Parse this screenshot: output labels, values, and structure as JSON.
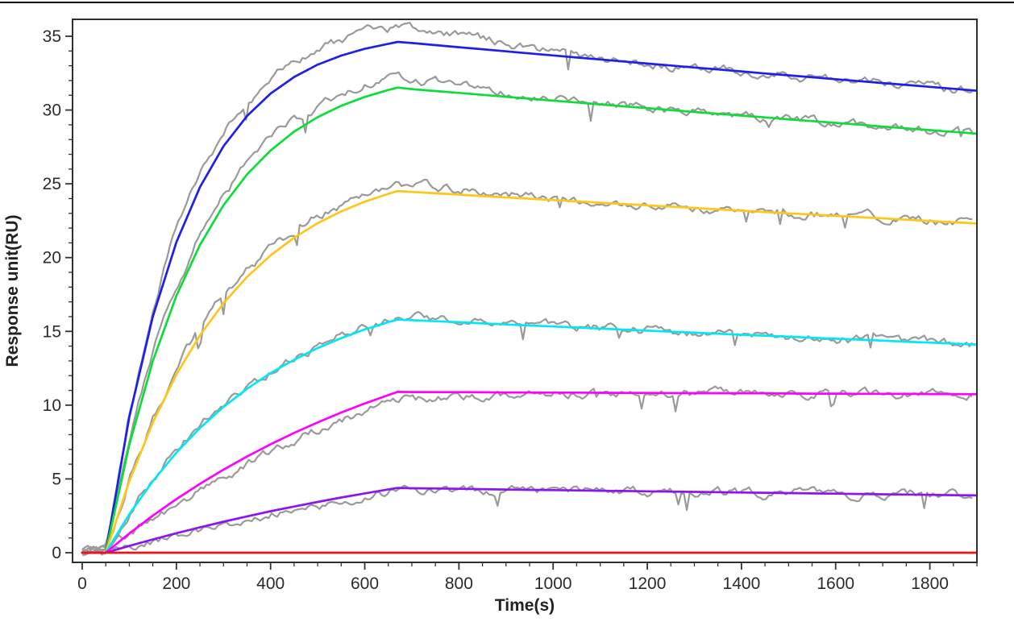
{
  "figure": {
    "background": "#ffffff",
    "top_divider_color": "#000000"
  },
  "chart_data": {
    "type": "line",
    "title": "",
    "xlabel": "Time(s)",
    "ylabel": "Response unit(RU)",
    "xlim": [
      -25,
      1900
    ],
    "ylim": [
      -0.7,
      36.2
    ],
    "grid": false,
    "legend": "none",
    "x_major_ticks": [
      0,
      200,
      400,
      600,
      800,
      1000,
      1200,
      1400,
      1600,
      1800
    ],
    "x_minor_step": 50,
    "y_major_ticks": [
      0,
      5,
      10,
      15,
      20,
      25,
      30,
      35
    ],
    "y_minor_step": 1,
    "axis_color": "#2f2f2f",
    "raw_trace_color": "#9a9a9a",
    "association_start_s": 50,
    "association_end_s": 670,
    "x": [
      0,
      50,
      100,
      150,
      200,
      250,
      300,
      350,
      400,
      450,
      500,
      550,
      600,
      650,
      670,
      700,
      750,
      800,
      850,
      900,
      950,
      1000,
      1050,
      1100,
      1150,
      1200,
      1250,
      1300,
      1350,
      1400,
      1450,
      1500,
      1550,
      1600,
      1650,
      1700,
      1750,
      1800,
      1850,
      1900
    ],
    "series": [
      {
        "name": "fit-curve-1-blue",
        "color": "#1f1fe8",
        "role": "fit",
        "peak_ru": 34.6,
        "overshoot": 1.0,
        "values": [
          0,
          0,
          9.19,
          16.0,
          21.04,
          24.78,
          27.55,
          29.6,
          31.12,
          32.24,
          33.08,
          33.69,
          34.15,
          34.49,
          34.62,
          34.54,
          34.4,
          34.26,
          34.12,
          33.98,
          33.84,
          33.7,
          33.56,
          33.43,
          33.29,
          33.15,
          33.02,
          32.88,
          32.75,
          32.62,
          32.48,
          32.35,
          32.22,
          32.09,
          31.96,
          31.83,
          31.7,
          31.57,
          31.44,
          31.31
        ]
      },
      {
        "name": "fit-curve-2-green",
        "color": "#0ddd38",
        "role": "fit",
        "peak_ru": 31.5,
        "overshoot": 0.7,
        "values": [
          0,
          0,
          7.3,
          12.99,
          17.41,
          20.86,
          23.55,
          25.64,
          27.26,
          28.54,
          29.52,
          30.29,
          30.89,
          31.36,
          31.52,
          31.42,
          31.29,
          31.16,
          31.03,
          30.9,
          30.77,
          30.64,
          30.51,
          30.38,
          30.25,
          30.13,
          30.0,
          29.87,
          29.75,
          29.62,
          29.5,
          29.37,
          29.25,
          29.13,
          29.01,
          28.88,
          28.76,
          28.64,
          28.52,
          28.4
        ]
      },
      {
        "name": "fit-curve-3-yellow",
        "color": "#ffc61a",
        "role": "fit",
        "peak_ru": 24.5,
        "overshoot": 0.45,
        "values": [
          0,
          0,
          4.85,
          8.82,
          12.07,
          14.73,
          16.91,
          18.69,
          20.15,
          21.35,
          22.33,
          23.13,
          23.79,
          24.32,
          24.51,
          24.45,
          24.36,
          24.27,
          24.17,
          24.08,
          23.99,
          23.9,
          23.81,
          23.72,
          23.63,
          23.54,
          23.45,
          23.36,
          23.27,
          23.18,
          23.09,
          23.0,
          22.92,
          22.83,
          22.74,
          22.66,
          22.57,
          22.48,
          22.4,
          22.31
        ]
      },
      {
        "name": "fit-curve-4-cyan",
        "color": "#00e8f5",
        "role": "fit",
        "peak_ru": 15.8,
        "overshoot": 0.15,
        "values": [
          0,
          0,
          2.61,
          4.85,
          6.78,
          8.45,
          9.88,
          11.11,
          12.17,
          13.08,
          13.87,
          14.54,
          15.13,
          15.63,
          15.8,
          15.76,
          15.69,
          15.62,
          15.54,
          15.47,
          15.4,
          15.33,
          15.26,
          15.19,
          15.12,
          15.05,
          14.98,
          14.91,
          14.84,
          14.77,
          14.71,
          14.64,
          14.57,
          14.5,
          14.44,
          14.37,
          14.3,
          14.24,
          14.17,
          14.11
        ]
      },
      {
        "name": "fit-curve-5-magenta",
        "color": "#ff00ff",
        "role": "fit",
        "peak_ru": 10.9,
        "overshoot": -0.5,
        "values": [
          0,
          0,
          1.3,
          2.51,
          3.63,
          4.67,
          5.63,
          6.52,
          7.35,
          8.12,
          8.83,
          9.5,
          10.11,
          10.68,
          10.9,
          10.89,
          10.88,
          10.88,
          10.87,
          10.86,
          10.86,
          10.85,
          10.85,
          10.84,
          10.83,
          10.83,
          10.82,
          10.81,
          10.81,
          10.8,
          10.8,
          10.79,
          10.78,
          10.78,
          10.77,
          10.77,
          10.76,
          10.75,
          10.75,
          10.74
        ]
      },
      {
        "name": "fit-curve-6-purple",
        "color": "#8d14f0",
        "role": "fit",
        "peak_ru": 4.4,
        "overshoot": -0.2,
        "values": [
          0,
          0,
          0.46,
          0.9,
          1.32,
          1.72,
          2.1,
          2.46,
          2.81,
          3.13,
          3.44,
          3.74,
          4.02,
          4.29,
          4.39,
          4.37,
          4.35,
          4.33,
          4.31,
          4.28,
          4.26,
          4.24,
          4.22,
          4.2,
          4.18,
          4.16,
          4.14,
          4.12,
          4.1,
          4.08,
          4.06,
          4.04,
          4.02,
          4.0,
          3.98,
          3.96,
          3.94,
          3.92,
          3.9,
          3.88
        ]
      },
      {
        "name": "fit-curve-7-blank-red",
        "color": "#f51111",
        "role": "fit",
        "peak_ru": 0.0,
        "overshoot": 0,
        "values": [
          0,
          0,
          0,
          0,
          0,
          0,
          0,
          0,
          0,
          0,
          0,
          0,
          0,
          0,
          0,
          0,
          0,
          0,
          0,
          0,
          0,
          0,
          0,
          0,
          0,
          0,
          0,
          0,
          0,
          0,
          0,
          0,
          0,
          0,
          0,
          0,
          0,
          0,
          0,
          0
        ]
      }
    ]
  }
}
